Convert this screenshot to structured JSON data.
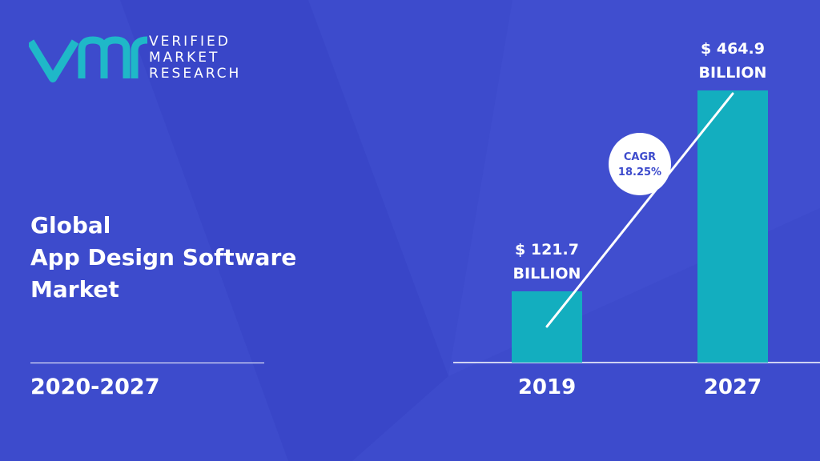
{
  "logo": {
    "line1": "VERIFIED",
    "line2": "MARKET",
    "line3": "RESEARCH",
    "accent_color": "#1fb8c8"
  },
  "title": {
    "line1": "Global",
    "line2": "App Design Software",
    "line3": "Market"
  },
  "period": "2020-2027",
  "colors": {
    "background": "#3d4bcc",
    "bar": "#13aebf",
    "text": "#ffffff"
  },
  "chart_data": {
    "type": "bar",
    "categories": [
      "2019",
      "2027"
    ],
    "values": [
      121.7,
      464.9
    ],
    "value_labels": [
      {
        "line1": "$ 121.7",
        "line2": "BILLION"
      },
      {
        "line1": "$ 464.9",
        "line2": "BILLION"
      }
    ],
    "cagr": {
      "label": "CAGR",
      "value": "18.25%"
    },
    "ylim": [
      0,
      464.9
    ],
    "grid": false,
    "legend": "none"
  }
}
